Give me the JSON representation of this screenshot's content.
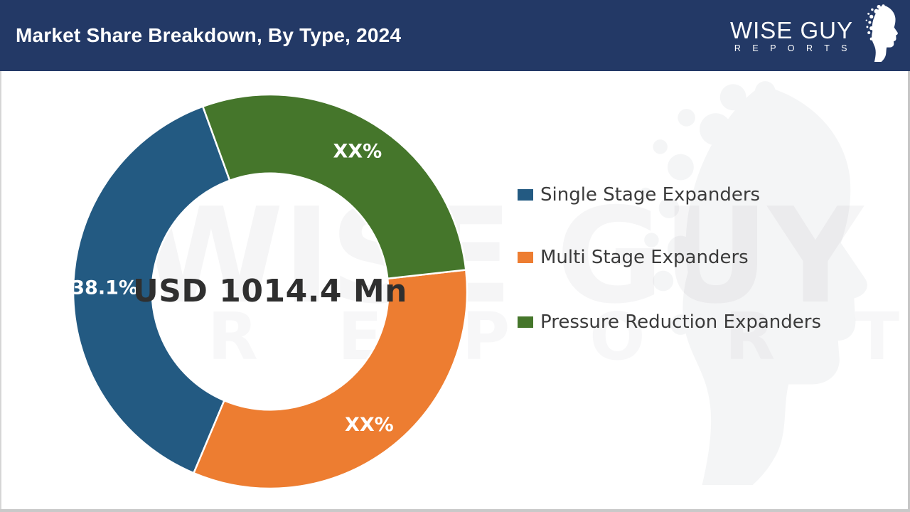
{
  "header": {
    "title": "Market Share Breakdown, By Type, 2024",
    "bg_color": "#233966",
    "logo_line1": "WISE GUY",
    "logo_line2": "R E P O R T S"
  },
  "watermark": {
    "line1": "WISE GUY",
    "line2": "R E P O R T S"
  },
  "chart_data": {
    "type": "pie",
    "variant": "donut",
    "title": "Market Share Breakdown, By Type, 2024",
    "center_label": "USD 1014.4 Mn",
    "segments": [
      {
        "name": "Single Stage Expanders",
        "label": "38.1%",
        "value_pct": 38.1,
        "color": "#235A82"
      },
      {
        "name": "Multi Stage Expanders",
        "label": "XX%",
        "value_pct": 33.1,
        "color": "#ED7D31"
      },
      {
        "name": "Pressure Reduction Expanders",
        "label": "XX%",
        "value_pct": 28.8,
        "color": "#45762B"
      }
    ],
    "start_angle_deg": 110,
    "direction": "ccw",
    "donut_hole_ratio": 0.6,
    "label_color": "#FFFFFF",
    "legend_position": "right",
    "gap_color": "#FFFFFF"
  }
}
